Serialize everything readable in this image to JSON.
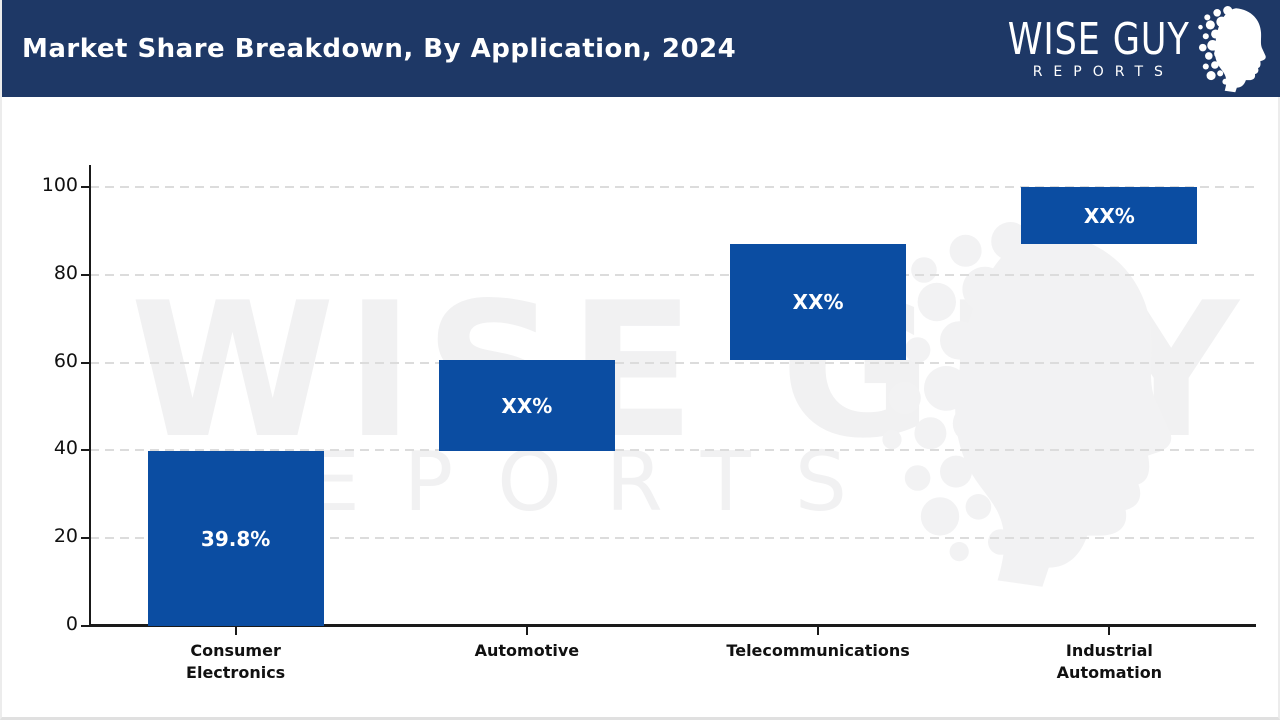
{
  "header": {
    "title": "Market Share Breakdown, By Application, 2024",
    "bg_color": "#1e3866",
    "brand": {
      "line1": "WISE GUY",
      "line2": "REPORTS"
    }
  },
  "watermark": {
    "line1": "WISE GUY",
    "line2": "REPORTS"
  },
  "chart_data": {
    "type": "bar",
    "subtype": "waterfall",
    "title": "Market Share Breakdown, By Application, 2024",
    "categories": [
      "Consumer\nElectronics",
      "Automotive",
      "Telecommunications",
      "Industrial\nAutomation"
    ],
    "segments": [
      {
        "category": "Consumer Electronics",
        "start": 0,
        "end": 39.8,
        "label": "39.8%"
      },
      {
        "category": "Automotive",
        "start": 39.8,
        "end": 60.5,
        "label": "XX%"
      },
      {
        "category": "Telecommunications",
        "start": 60.5,
        "end": 87.0,
        "label": "XX%"
      },
      {
        "category": "Industrial Automation",
        "start": 87.0,
        "end": 100.0,
        "label": "XX%"
      }
    ],
    "xlabel": "",
    "ylabel": "",
    "ylim": [
      0,
      100
    ],
    "yticks": [
      0,
      20,
      40,
      60,
      80,
      100
    ],
    "bar_color": "#0b4da2",
    "bar_label_color": "#ffffff",
    "grid": true,
    "grid_style": "dashed",
    "legend": "none"
  }
}
